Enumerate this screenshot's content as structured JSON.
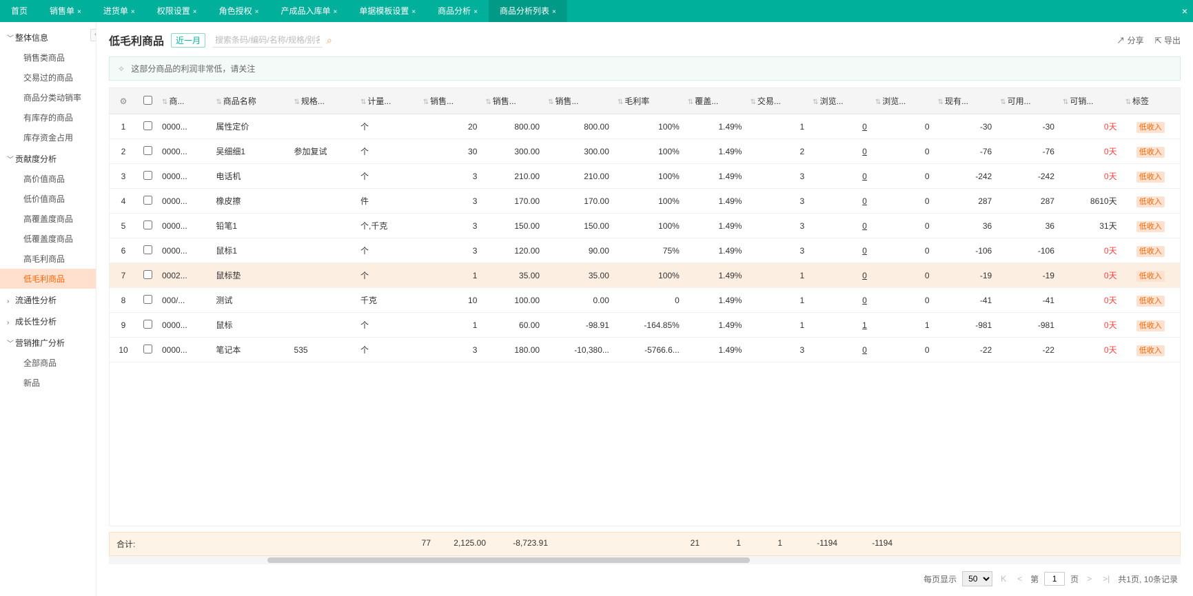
{
  "tabs": [
    "首页",
    "销售单",
    "进货单",
    "权限设置",
    "角色授权",
    "产成品入库单",
    "单据模板设置",
    "商品分析",
    "商品分析列表"
  ],
  "tabs_active_index": 8,
  "sidebar": [
    {
      "title": "整体信息",
      "expanded": true,
      "items": [
        "销售类商品",
        "交易过的商品",
        "商品分类动销率",
        "有库存的商品",
        "库存资金占用"
      ]
    },
    {
      "title": "贡献度分析",
      "expanded": true,
      "items": [
        "高价值商品",
        "低价值商品",
        "高覆盖度商品",
        "低覆盖度商品",
        "高毛利商品",
        "低毛利商品"
      ],
      "active_item": "低毛利商品"
    },
    {
      "title": "流通性分析",
      "expanded": false,
      "items": []
    },
    {
      "title": "成长性分析",
      "expanded": false,
      "items": []
    },
    {
      "title": "营销推广分析",
      "expanded": true,
      "items": [
        "全部商品",
        "新品"
      ]
    }
  ],
  "page": {
    "title": "低毛利商品",
    "period": "近一月",
    "search_placeholder": "搜索条码/编码/名称/规格/别名",
    "share": "分享",
    "export": "导出",
    "notice": "这部分商品的利润非常低，请关注"
  },
  "columns": [
    "商...",
    "商品名称",
    "规格...",
    "计量...",
    "销售...",
    "销售...",
    "销售...",
    "毛利率",
    "覆盖...",
    "交易...",
    "浏览...",
    "浏览...",
    "现有...",
    "可用...",
    "可销...",
    "标签"
  ],
  "rows": [
    {
      "idx": 1,
      "code": "0000...",
      "name": "属性定价",
      "spec": "",
      "unit": "个",
      "qty": "20",
      "amt": "800.00",
      "amt2": "800.00",
      "gp": "100%",
      "cov": "1.49%",
      "trade": "1",
      "view": "0",
      "view2": "0",
      "stock": "-30",
      "avail": "-30",
      "sale": "0天",
      "sale_red": true,
      "tag": "低收入"
    },
    {
      "idx": 2,
      "code": "0000...",
      "name": "吴细细1",
      "spec": "参加复试",
      "unit": "个",
      "qty": "30",
      "amt": "300.00",
      "amt2": "300.00",
      "gp": "100%",
      "cov": "1.49%",
      "trade": "2",
      "view": "0",
      "view2": "0",
      "stock": "-76",
      "avail": "-76",
      "sale": "0天",
      "sale_red": true,
      "tag": "低收入"
    },
    {
      "idx": 3,
      "code": "0000...",
      "name": "电话机",
      "spec": "",
      "unit": "个",
      "qty": "3",
      "amt": "210.00",
      "amt2": "210.00",
      "gp": "100%",
      "cov": "1.49%",
      "trade": "3",
      "view": "0",
      "view2": "0",
      "stock": "-242",
      "avail": "-242",
      "sale": "0天",
      "sale_red": true,
      "tag": "低收入"
    },
    {
      "idx": 4,
      "code": "0000...",
      "name": "橡皮擦",
      "spec": "",
      "unit": "件",
      "qty": "3",
      "amt": "170.00",
      "amt2": "170.00",
      "gp": "100%",
      "cov": "1.49%",
      "trade": "3",
      "view": "0",
      "view2": "0",
      "stock": "287",
      "avail": "287",
      "sale": "8610天",
      "sale_red": false,
      "tag": "低收入"
    },
    {
      "idx": 5,
      "code": "0000...",
      "name": "铅笔1",
      "spec": "",
      "unit": "个,千克",
      "qty": "3",
      "amt": "150.00",
      "amt2": "150.00",
      "gp": "100%",
      "cov": "1.49%",
      "trade": "3",
      "view": "0",
      "view2": "0",
      "stock": "36",
      "avail": "36",
      "sale": "31天",
      "sale_red": false,
      "tag": "低收入"
    },
    {
      "idx": 6,
      "code": "0000...",
      "name": "鼠标1",
      "spec": "",
      "unit": "个",
      "qty": "3",
      "amt": "120.00",
      "amt2": "90.00",
      "gp": "75%",
      "cov": "1.49%",
      "trade": "3",
      "view": "0",
      "view2": "0",
      "stock": "-106",
      "avail": "-106",
      "sale": "0天",
      "sale_red": true,
      "tag": "低收入"
    },
    {
      "idx": 7,
      "code": "0002...",
      "name": "鼠标垫",
      "spec": "",
      "unit": "个",
      "qty": "1",
      "amt": "35.00",
      "amt2": "35.00",
      "gp": "100%",
      "cov": "1.49%",
      "trade": "1",
      "view": "0",
      "view2": "0",
      "stock": "-19",
      "avail": "-19",
      "sale": "0天",
      "sale_red": true,
      "tag": "低收入",
      "hover": true
    },
    {
      "idx": 8,
      "code": "000/...",
      "name": "测试",
      "spec": "",
      "unit": "千克",
      "qty": "10",
      "amt": "100.00",
      "amt2": "0.00",
      "gp": "0",
      "cov": "1.49%",
      "trade": "1",
      "view": "0",
      "view2": "0",
      "stock": "-41",
      "avail": "-41",
      "sale": "0天",
      "sale_red": true,
      "tag": "低收入"
    },
    {
      "idx": 9,
      "code": "0000...",
      "name": "鼠标",
      "spec": "",
      "unit": "个",
      "qty": "1",
      "amt": "60.00",
      "amt2": "-98.91",
      "gp": "-164.85%",
      "cov": "1.49%",
      "trade": "1",
      "view": "1",
      "view2": "1",
      "stock": "-981",
      "avail": "-981",
      "sale": "0天",
      "sale_red": true,
      "tag": "低收入"
    },
    {
      "idx": 10,
      "code": "0000...",
      "name": "笔记本",
      "spec": "535",
      "unit": "个",
      "qty": "3",
      "amt": "180.00",
      "amt2": "-10,380...",
      "gp": "-5766.6...",
      "cov": "1.49%",
      "trade": "3",
      "view": "0",
      "view2": "0",
      "stock": "-22",
      "avail": "-22",
      "sale": "0天",
      "sale_red": true,
      "tag": "低收入"
    }
  ],
  "totals": {
    "label": "合计:",
    "qty": "77",
    "amt": "2,125.00",
    "amt2": "-8,723.91",
    "trade": "21",
    "view": "1",
    "view2": "1",
    "stock": "-1194",
    "avail": "-1194"
  },
  "pager": {
    "perpage_label": "每页显示",
    "perpage_value": "50",
    "page_prefix": "第",
    "page_value": "1",
    "page_suffix": "页",
    "summary": "共1页, 10条记录"
  }
}
